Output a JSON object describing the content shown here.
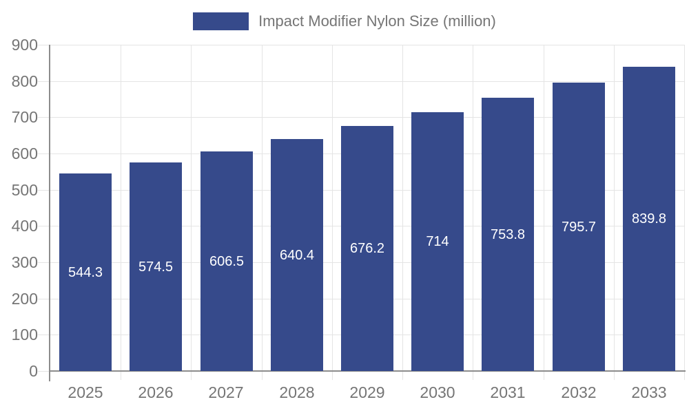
{
  "page": {
    "background": "#ffffff"
  },
  "legend": {
    "label": "Impact Modifier Nylon Size (million)"
  },
  "chart_data": {
    "type": "bar",
    "title": "",
    "series_name": "Impact Modifier Nylon Size (million)",
    "legend_entries": [
      "Impact Modifier Nylon Size (million)"
    ],
    "legend_position": "top-center",
    "categories": [
      "2025",
      "2026",
      "2027",
      "2028",
      "2029",
      "2030",
      "2031",
      "2032",
      "2033"
    ],
    "values": [
      544.3,
      574.5,
      606.5,
      640.4,
      676.2,
      714,
      753.8,
      795.7,
      839.8
    ],
    "value_labels": [
      "544.3",
      "574.5",
      "606.5",
      "640.4",
      "676.2",
      "714",
      "753.8",
      "795.7",
      "839.8"
    ],
    "xlabel": "",
    "ylabel": "",
    "ylim": [
      0,
      900
    ],
    "yticks": [
      0,
      100,
      200,
      300,
      400,
      500,
      600,
      700,
      800,
      900
    ],
    "grid": true,
    "bar_color": "#364A8B",
    "value_label_color": "#ffffff",
    "axis_text_color": "#757575",
    "grid_color": "#e4e4e4",
    "axis_line_color": "#8c8c8c"
  }
}
